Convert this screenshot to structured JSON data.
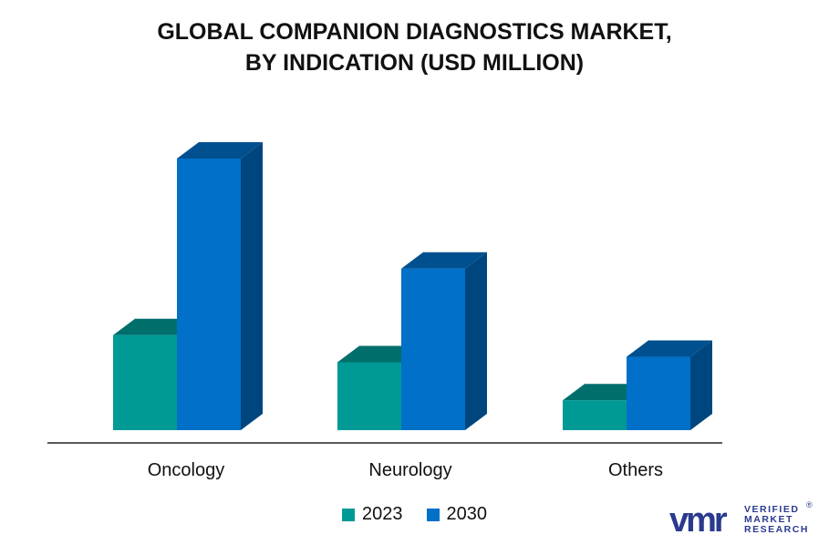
{
  "chart_data": {
    "type": "bar",
    "title_lines": [
      "GLOBAL COMPANION DIAGNOSTICS MARKET,",
      "BY INDICATION (USD MILLION)"
    ],
    "categories": [
      "Oncology",
      "Neurology",
      "Others"
    ],
    "series": [
      {
        "name": "2023",
        "values": [
          35,
          25,
          11
        ],
        "color": "#009a96",
        "top_color": "#006f6c"
      },
      {
        "name": "2030",
        "values": [
          100,
          59.5,
          27
        ],
        "color": "#0070c8",
        "side_color": "#00467e",
        "top_color": "#00508f"
      }
    ],
    "ylim": [
      0,
      100
    ],
    "grid": false,
    "legend_position": "bottom"
  },
  "brand": {
    "mark": "vmr",
    "line1": "VERIFIED",
    "line2": "MARKET",
    "line3": "RESEARCH",
    "reg": "®"
  }
}
